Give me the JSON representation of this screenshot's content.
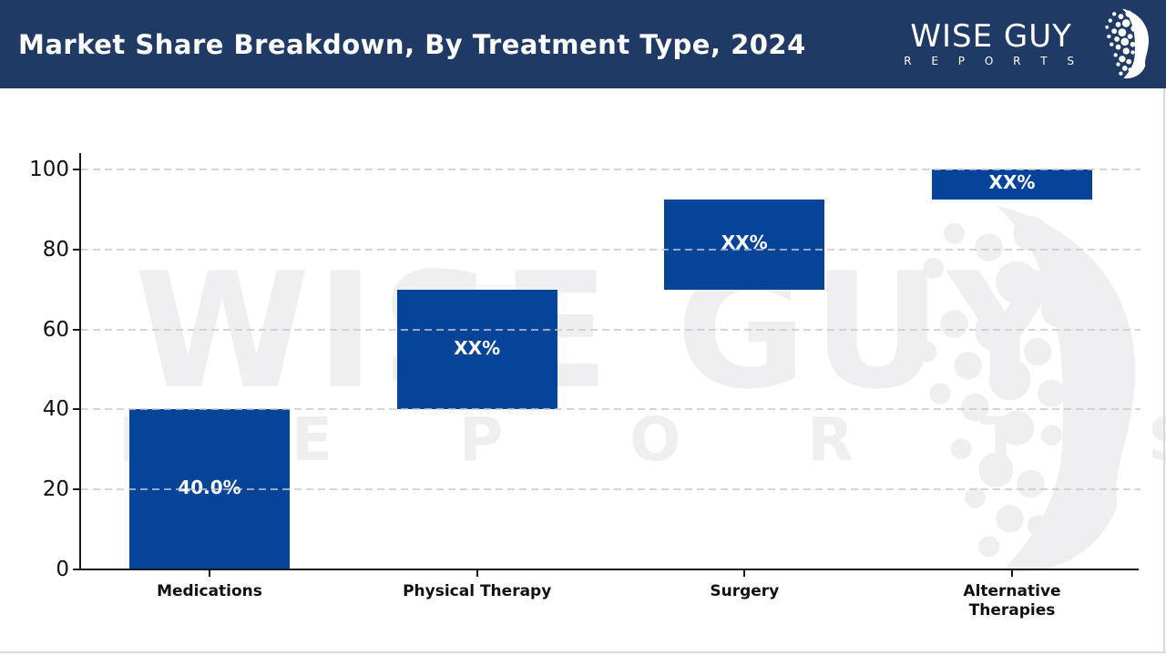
{
  "header": {
    "title": "Market Share Breakdown, By Treatment Type, 2024",
    "bg_color": "#203a66",
    "logo": {
      "line1": "WISE GUY",
      "line2": "R E P O R T S"
    }
  },
  "watermark": {
    "line1": "WISE GUY",
    "line2": "R E P O R T S"
  },
  "colors": {
    "bar_blue": "#06449a",
    "header_navy": "#203a66",
    "watermark_gray": "#efeff2",
    "gridline_gray": "#dcdcdc",
    "axis_black": "#1a1a1a"
  },
  "chart_data": {
    "type": "bar",
    "subtype": "waterfall",
    "title": "Market Share Breakdown, By Treatment Type, 2024",
    "categories": [
      "Medications",
      "Physical Therapy",
      "Surgery",
      "Alternative\nTherapies"
    ],
    "values": [
      40,
      30,
      22.5,
      7.5
    ],
    "segments": [
      {
        "start": 0,
        "end": 40,
        "label": "40.0%"
      },
      {
        "start": 40,
        "end": 70,
        "label": "XX%"
      },
      {
        "start": 70,
        "end": 92.5,
        "label": "XX%"
      },
      {
        "start": 92.5,
        "end": 100,
        "label": "XX%"
      }
    ],
    "value_labels": [
      "40.0%",
      "XX%",
      "XX%",
      "XX%"
    ],
    "xlabel": "",
    "ylabel": "",
    "ylim": [
      0,
      100
    ],
    "yticks": [
      0,
      20,
      40,
      60,
      80,
      100
    ],
    "grid": "horizontal dashed",
    "legend": "none",
    "bar_color": "#06449a"
  }
}
